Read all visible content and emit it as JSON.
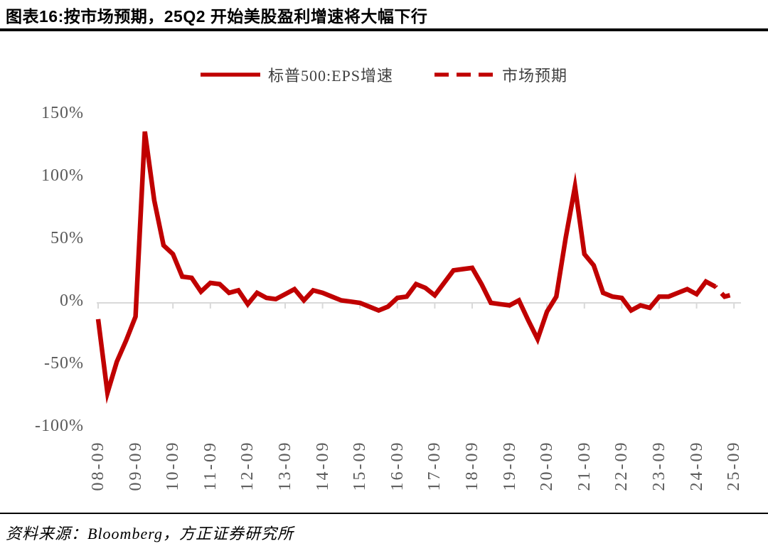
{
  "figure": {
    "title": "图表16:按市场预期，25Q2 开始美股盈利增速将大幅下行",
    "source": "资料来源：Bloomberg，方正证券研究所"
  },
  "legend": {
    "items": [
      {
        "label": "标普500:EPS增速",
        "style": "solid"
      },
      {
        "label": "市场预期",
        "style": "dashed"
      }
    ]
  },
  "colors": {
    "line": "#C00000",
    "axis": "#D9D9D9",
    "axis_label": "#595959",
    "legend_text": "#404040",
    "title_text": "#000000"
  },
  "chart_data": {
    "type": "line",
    "title": "图表16:按市场预期，25Q2 开始美股盈利增速将大幅下行",
    "xlabel": "",
    "ylabel": "",
    "ylim": [
      -100,
      150
    ],
    "grid": false,
    "legend_position": "top",
    "y_ticks": [
      {
        "value": 150,
        "label": "150%"
      },
      {
        "value": 100,
        "label": "100%"
      },
      {
        "value": 50,
        "label": "50%"
      },
      {
        "value": 0,
        "label": "0%"
      },
      {
        "value": -50,
        "label": "-50%"
      },
      {
        "value": -100,
        "label": "-100%"
      }
    ],
    "x_tick_labels": [
      "08-09",
      "09-09",
      "10-09",
      "11-09",
      "12-09",
      "13-09",
      "14-09",
      "15-09",
      "16-09",
      "17-09",
      "18-09",
      "19-09",
      "20-09",
      "21-09",
      "22-09",
      "23-09",
      "24-09",
      "25-09"
    ],
    "series": [
      {
        "name": "标普500:EPS增速",
        "style": "solid",
        "start_index": 0,
        "x": [
          "08-09",
          "08-12",
          "09-03",
          "09-06",
          "09-09",
          "09-12",
          "10-03",
          "10-06",
          "10-09",
          "10-12",
          "11-03",
          "11-06",
          "11-09",
          "11-12",
          "12-03",
          "12-06",
          "12-09",
          "12-12",
          "13-03",
          "13-06",
          "13-09",
          "13-12",
          "14-03",
          "14-06",
          "14-09",
          "14-12",
          "15-03",
          "15-06",
          "15-09",
          "15-12",
          "16-03",
          "16-06",
          "16-09",
          "16-12",
          "17-03",
          "17-06",
          "17-09",
          "17-12",
          "18-03",
          "18-06",
          "18-09",
          "18-12",
          "19-03",
          "19-06",
          "19-09",
          "19-12",
          "20-03",
          "20-06",
          "20-09",
          "20-12",
          "21-03",
          "21-06",
          "21-09",
          "21-12",
          "22-03",
          "22-06",
          "22-09",
          "22-12",
          "23-03",
          "23-06",
          "23-09",
          "23-12",
          "24-03",
          "24-06",
          "24-09",
          "24-12",
          "25-03"
        ],
        "values": [
          -13,
          -72,
          -47,
          -30,
          -11,
          137,
          82,
          46,
          39,
          21,
          20,
          9,
          16,
          15,
          8,
          10,
          -1,
          8,
          4,
          3,
          7,
          11,
          2,
          10,
          8,
          5,
          2,
          1,
          0,
          -3,
          -6,
          -3,
          4,
          5,
          15,
          12,
          6,
          16,
          26,
          27,
          28,
          15,
          0,
          -1,
          -2,
          2,
          -14,
          -29,
          -7,
          5,
          52,
          93,
          39,
          30,
          8,
          5,
          4,
          -6,
          -2,
          -4,
          5,
          5,
          8,
          11,
          7,
          17,
          13
        ]
      },
      {
        "name": "市场预期",
        "style": "dashed",
        "start_index": 66,
        "x": [
          "25-03",
          "25-06",
          "25-09"
        ],
        "values": [
          13,
          5,
          7
        ]
      }
    ]
  }
}
